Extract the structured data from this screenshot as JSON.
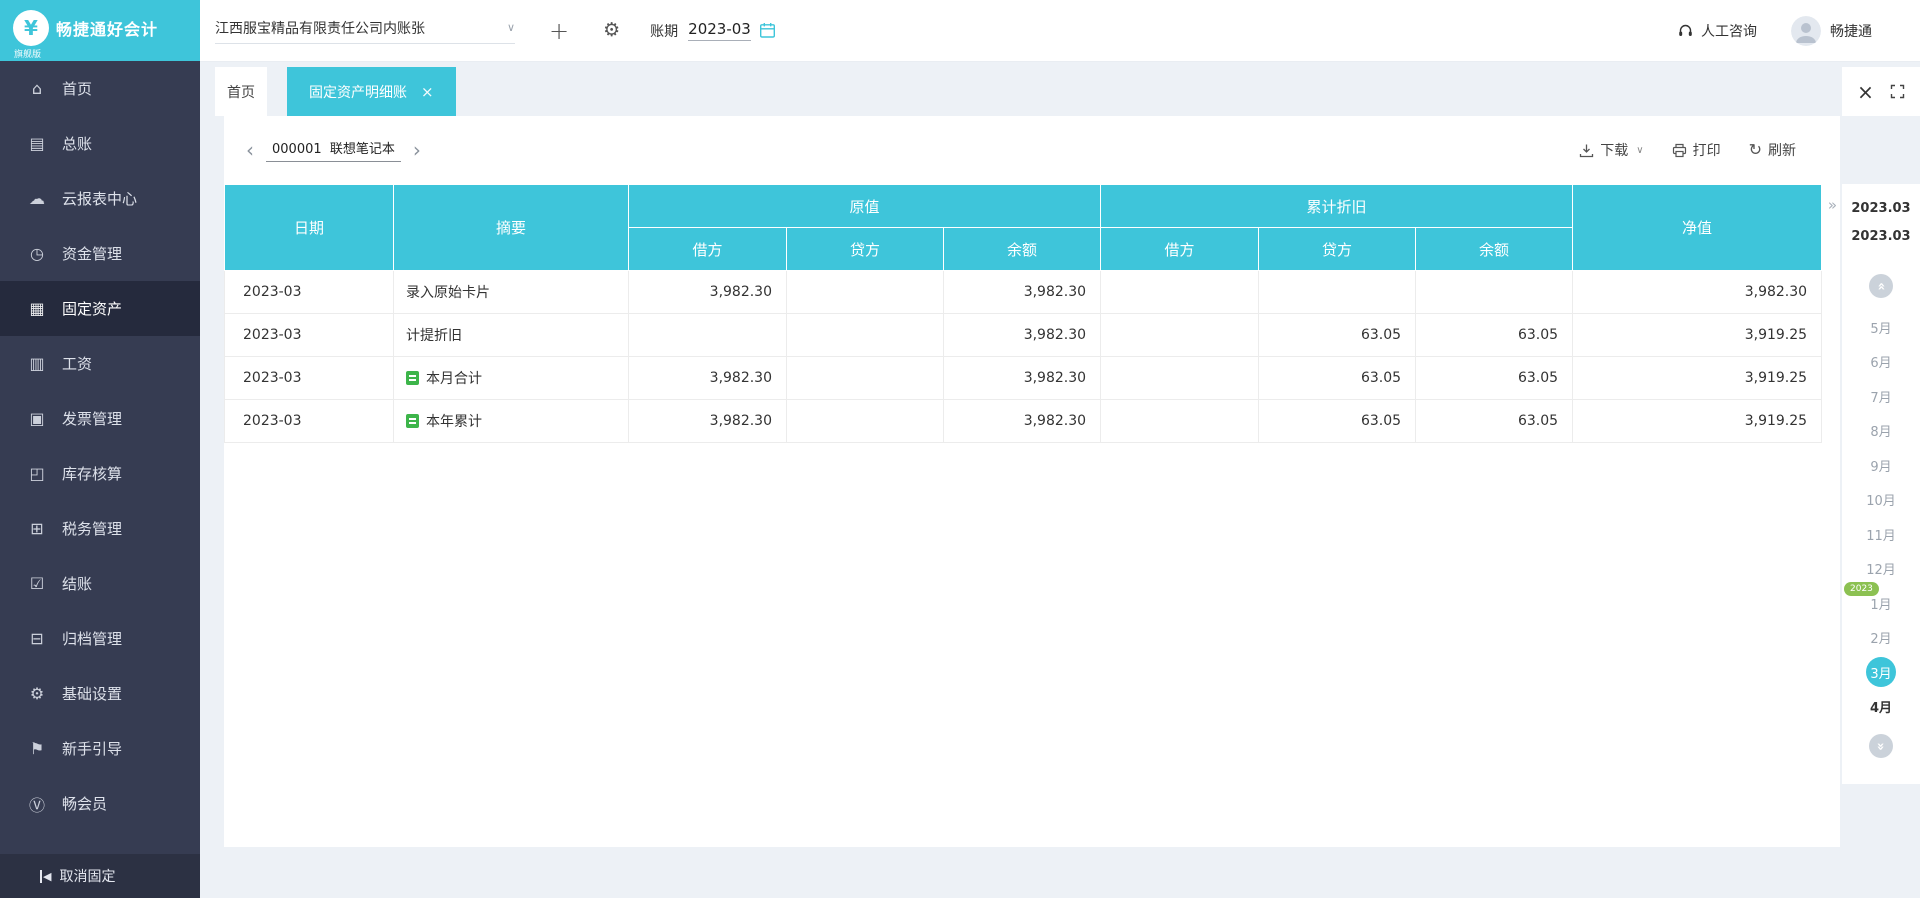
{
  "topbar": {
    "company": "江西服宝精品有限责任公司内账张",
    "period_label": "账期",
    "period_value": "2023-03",
    "support_label": "人工咨询",
    "user_name": "畅捷通"
  },
  "sidebar": {
    "logo_title": "畅捷通好会计",
    "logo_badge": "旗舰版",
    "unpin_label": "取消固定",
    "items": [
      {
        "label": "首页",
        "icon": "home-icon",
        "active": false
      },
      {
        "label": "总账",
        "icon": "ledger-icon",
        "active": false
      },
      {
        "label": "云报表中心",
        "icon": "cloud-report-icon",
        "active": false
      },
      {
        "label": "资金管理",
        "icon": "funds-icon",
        "active": false
      },
      {
        "label": "固定资产",
        "icon": "fixed-assets-icon",
        "active": true
      },
      {
        "label": "工资",
        "icon": "salary-icon",
        "active": false
      },
      {
        "label": "发票管理",
        "icon": "invoice-icon",
        "active": false
      },
      {
        "label": "库存核算",
        "icon": "inventory-icon",
        "active": false
      },
      {
        "label": "税务管理",
        "icon": "tax-icon",
        "active": false
      },
      {
        "label": "结账",
        "icon": "closing-icon",
        "active": false
      },
      {
        "label": "归档管理",
        "icon": "archive-icon",
        "active": false
      },
      {
        "label": "基础设置",
        "icon": "settings-icon",
        "active": false
      },
      {
        "label": "新手引导",
        "icon": "guide-icon",
        "active": false
      },
      {
        "label": "畅会员",
        "icon": "member-icon",
        "active": false
      }
    ]
  },
  "tabs": [
    {
      "label": "首页",
      "active": false,
      "closable": false
    },
    {
      "label": "固定资产明细账",
      "active": true,
      "closable": true
    }
  ],
  "toolbar": {
    "asset_selector": "000001  联想笔记本",
    "download_label": "下载",
    "print_label": "打印",
    "refresh_label": "刷新"
  },
  "table": {
    "header": {
      "date": "日期",
      "summary": "摘要",
      "original_value": "原值",
      "accumulated_depreciation": "累计折旧",
      "net_value": "净值",
      "debit": "借方",
      "credit": "贷方",
      "balance": "余额"
    },
    "rows": [
      {
        "date": "2023-03",
        "summary": "录入原始卡片",
        "summary_icon": false,
        "cells": [
          "3,982.30",
          "",
          "3,982.30",
          "",
          "",
          "",
          "3,982.30"
        ]
      },
      {
        "date": "2023-03",
        "summary": "计提折旧",
        "summary_icon": false,
        "cells": [
          "",
          "",
          "3,982.30",
          "",
          "63.05",
          "63.05",
          "3,919.25"
        ]
      },
      {
        "date": "2023-03",
        "summary": "本月合计",
        "summary_icon": true,
        "cells": [
          "3,982.30",
          "",
          "3,982.30",
          "",
          "63.05",
          "63.05",
          "3,919.25"
        ]
      },
      {
        "date": "2023-03",
        "summary": "本年累计",
        "summary_icon": true,
        "cells": [
          "3,982.30",
          "",
          "3,982.30",
          "",
          "63.05",
          "63.05",
          "3,919.25"
        ]
      }
    ]
  },
  "date_panel": {
    "period_start": "2023.03",
    "period_end": "2023.03",
    "year_badge": "2023",
    "months": [
      {
        "label": "5月",
        "state": "normal"
      },
      {
        "label": "6月",
        "state": "normal"
      },
      {
        "label": "7月",
        "state": "normal"
      },
      {
        "label": "8月",
        "state": "normal"
      },
      {
        "label": "9月",
        "state": "normal"
      },
      {
        "label": "10月",
        "state": "normal"
      },
      {
        "label": "11月",
        "state": "normal"
      },
      {
        "label": "12月",
        "state": "normal"
      },
      {
        "label": "1月",
        "state": "normal"
      },
      {
        "label": "2月",
        "state": "normal"
      },
      {
        "label": "3月",
        "state": "active"
      },
      {
        "label": "4月",
        "state": "current"
      }
    ]
  },
  "colors": {
    "primary_teal": "#3EC5DA",
    "sidebar_bg": "#363C52",
    "sidebar_active_bg": "#252A3D",
    "content_bg": "#EDF1F6",
    "summary_icon_green": "#3DB54A",
    "year_badge_green": "#8CC152"
  }
}
